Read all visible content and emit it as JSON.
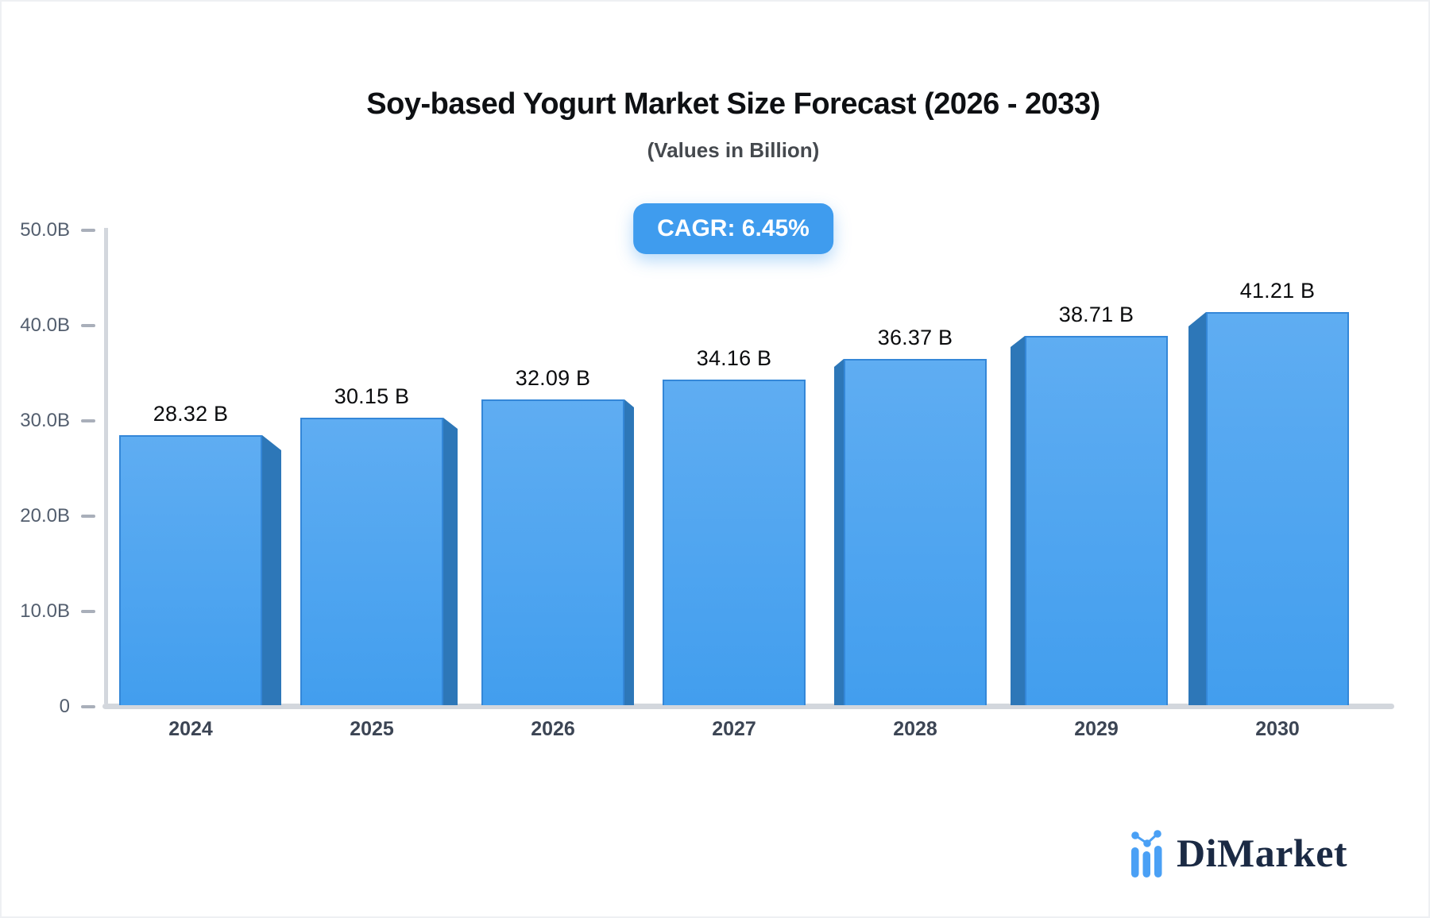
{
  "header": {
    "title": "Soy-based Yogurt Market Size Forecast (2026 - 2033)",
    "subtitle": "(Values in Billion)",
    "cagr_label": "CAGR: 6.45%"
  },
  "footer": {
    "brand": "DiMarket",
    "brand_icon": "bar-line-chart-icon"
  },
  "chart_data": {
    "type": "bar",
    "title": "Soy-based Yogurt Market Size Forecast (2026 - 2033)",
    "subtitle": "(Values in Billion)",
    "annotation": "CAGR: 6.45%",
    "categories": [
      "2024",
      "2025",
      "2026",
      "2027",
      "2028",
      "2029",
      "2030"
    ],
    "values": [
      28.32,
      30.15,
      32.09,
      34.16,
      36.37,
      38.71,
      41.21
    ],
    "value_labels": [
      "28.32 B",
      "30.15 B",
      "32.09 B",
      "34.16 B",
      "36.37 B",
      "38.71 B",
      "41.21 B"
    ],
    "y_ticks": [
      {
        "value": 0,
        "label": "0"
      },
      {
        "value": 10,
        "label": "10.0B"
      },
      {
        "value": 20,
        "label": "20.0B"
      },
      {
        "value": 30,
        "label": "30.0B"
      },
      {
        "value": 40,
        "label": "40.0B"
      },
      {
        "value": 50,
        "label": "50.0B"
      }
    ],
    "ylim": [
      0,
      50
    ],
    "grid": false,
    "legend": false,
    "colors": {
      "bar_face_top": "#5fadf2",
      "bar_face_bottom": "#429eee",
      "bar_face_border": "#3487d8",
      "bar_side": "#2d77b8",
      "axis_line": "#d3d7dd",
      "tick_dash": "#a9afba",
      "badge_bg": "#3f9cee",
      "badge_text": "#ffffff",
      "brand_text": "#1b2a44",
      "brand_icon": "#4aa0f5"
    }
  }
}
